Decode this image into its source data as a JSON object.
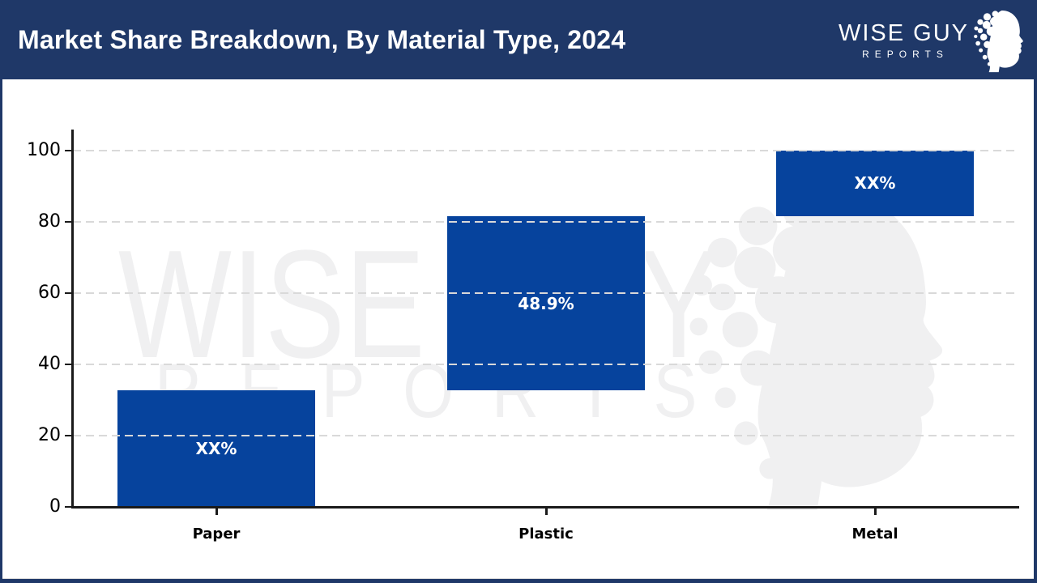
{
  "header": {
    "title": "Market Share Breakdown, By Material Type, 2024",
    "logo": {
      "brand_top": "WISE GUY",
      "brand_bottom": "REPORTS"
    }
  },
  "watermark": {
    "brand_top": "WISE GUY",
    "brand_bottom": "REPORTS"
  },
  "colors": {
    "header_bg": "#1f3868",
    "bar_fill": "#06439d",
    "bar_label": "#ffffff",
    "axis": "#1a1a1a",
    "gridline": "#d9d9d9",
    "watermark": "#f0f0f1"
  },
  "chart_data": {
    "type": "bar",
    "subtype": "floating-segment-waterfall",
    "title": "Market Share Breakdown, By Material Type, 2024",
    "categories": [
      "Paper",
      "Plastic",
      "Metal"
    ],
    "segments": [
      {
        "category": "Paper",
        "start": 0,
        "end": 32.7,
        "label": "XX%"
      },
      {
        "category": "Plastic",
        "start": 32.7,
        "end": 81.6,
        "label": "48.9%"
      },
      {
        "category": "Metal",
        "start": 81.6,
        "end": 100,
        "label": "XX%"
      }
    ],
    "ylim": [
      0,
      100
    ],
    "yticks": [
      0,
      20,
      40,
      60,
      80,
      100
    ],
    "xlabel": "",
    "ylabel": "",
    "grid": {
      "axis": "y",
      "style": "dashed",
      "drawn_above_bars": true
    },
    "legend": "none"
  }
}
